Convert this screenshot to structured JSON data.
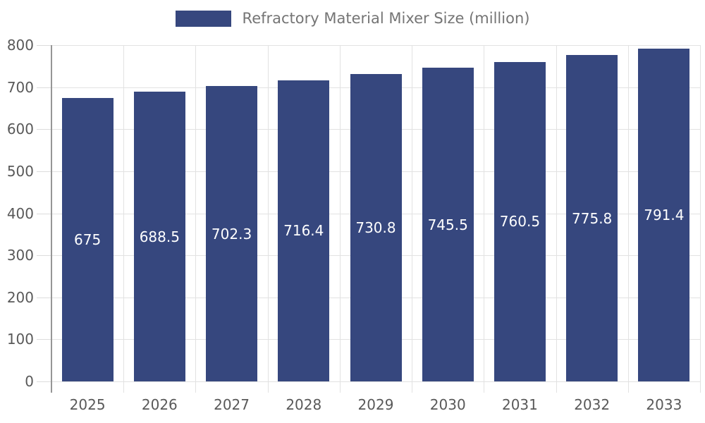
{
  "legend": {
    "label": "Refractory Material Mixer Size (million)"
  },
  "colors": {
    "bar": "#36477e",
    "grid": "#e2e2e2",
    "tick": "#dcdcdc",
    "axis": "#969696",
    "tick_label": "#595959",
    "legend_text": "#757575",
    "value_label": "#ffffff",
    "background": "#ffffff"
  },
  "chart_data": {
    "type": "bar",
    "title": "Refractory Material Mixer Size (million)",
    "categories": [
      "2025",
      "2026",
      "2027",
      "2028",
      "2029",
      "2030",
      "2031",
      "2032",
      "2033"
    ],
    "values": [
      675,
      688.5,
      702.3,
      716.4,
      730.8,
      745.5,
      760.5,
      775.8,
      791.4
    ],
    "value_labels": [
      "675",
      "688.5",
      "702.3",
      "716.4",
      "730.8",
      "745.5",
      "760.5",
      "775.8",
      "791.4"
    ],
    "xlabel": "",
    "ylabel": "",
    "ylim": [
      0,
      800
    ],
    "yticks": [
      0,
      100,
      200,
      300,
      400,
      500,
      600,
      700,
      800
    ],
    "grid": true,
    "legend_position": "top",
    "value_label_position": "center"
  }
}
